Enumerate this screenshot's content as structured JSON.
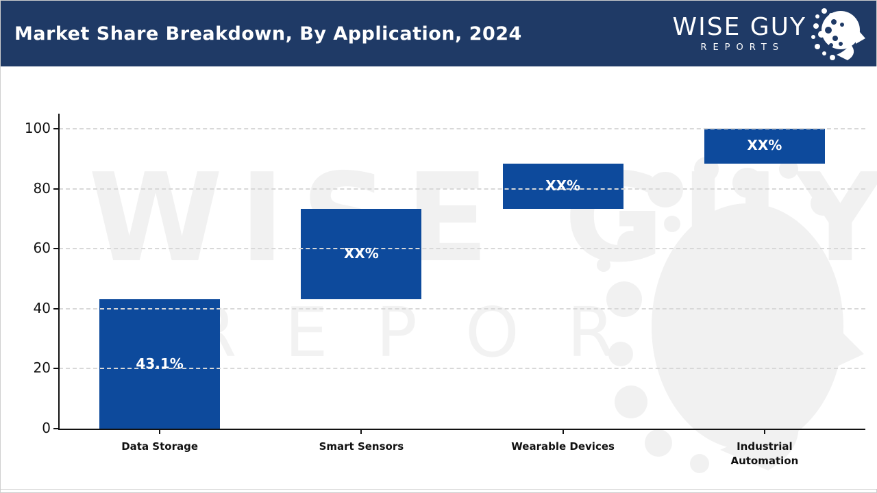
{
  "header": {
    "title": "Market Share Breakdown, By Application, 2024",
    "logo": {
      "line1": "WISE GUY",
      "line2": "REPORTS"
    }
  },
  "watermark": {
    "line1": "WISE GUY",
    "line2": "REPORTS"
  },
  "chart_data": {
    "type": "bar",
    "subtype": "waterfall",
    "title": "Market Share Breakdown, By Application, 2024",
    "xlabel": "",
    "ylabel": "",
    "categories": [
      "Data Storage",
      "Smart Sensors",
      "Wearable Devices",
      "Industrial Automation"
    ],
    "segments": [
      {
        "category": "Data Storage",
        "start": 0,
        "end": 43.1,
        "label": "43.1%"
      },
      {
        "category": "Smart Sensors",
        "start": 43.1,
        "end": 73.2,
        "label": "XX%"
      },
      {
        "category": "Wearable Devices",
        "start": 73.2,
        "end": 88.4,
        "label": "XX%"
      },
      {
        "category": "Industrial Automation",
        "start": 88.4,
        "end": 100,
        "label": "XX%"
      }
    ],
    "yticks": [
      0,
      20,
      40,
      60,
      80,
      100
    ],
    "ylim": [
      0,
      105
    ],
    "grid": "dashed-horizontal",
    "legend": "none",
    "colors": {
      "bar": "#0d4a9c",
      "header_bg": "#1f3a66",
      "gridline": "#d8d8d8",
      "axis": "#111111",
      "bar_label": "#ffffff",
      "watermark": "#f1f1f1"
    }
  }
}
